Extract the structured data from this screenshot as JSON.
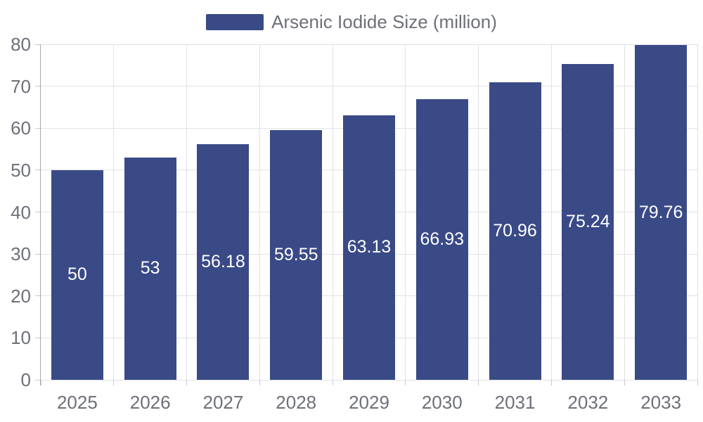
{
  "chart_data": {
    "type": "bar",
    "title": "",
    "legend": "Arsenic Iodide Size (million)",
    "categories": [
      "2025",
      "2026",
      "2027",
      "2028",
      "2029",
      "2030",
      "2031",
      "2032",
      "2033"
    ],
    "values": [
      50,
      53,
      56.18,
      59.55,
      63.13,
      66.93,
      70.96,
      75.24,
      79.76
    ],
    "value_labels": [
      "50",
      "53",
      "56.18",
      "59.55",
      "63.13",
      "66.93",
      "70.96",
      "75.24",
      "79.76"
    ],
    "xlabel": "",
    "ylabel": "",
    "ylim": [
      0,
      80
    ],
    "yticks": [
      0,
      10,
      20,
      30,
      40,
      50,
      60,
      70,
      80
    ],
    "grid": true,
    "legend_position": "top-center",
    "colors": {
      "bar": "#3A4A87",
      "value_label": "#FFFFFF",
      "axis_text": "#6E7079",
      "grid_line": "#E2E2E8",
      "axis_line": "#A8A8A8",
      "tick_line": "#C9C9C9",
      "background": "#FFFFFF"
    }
  }
}
